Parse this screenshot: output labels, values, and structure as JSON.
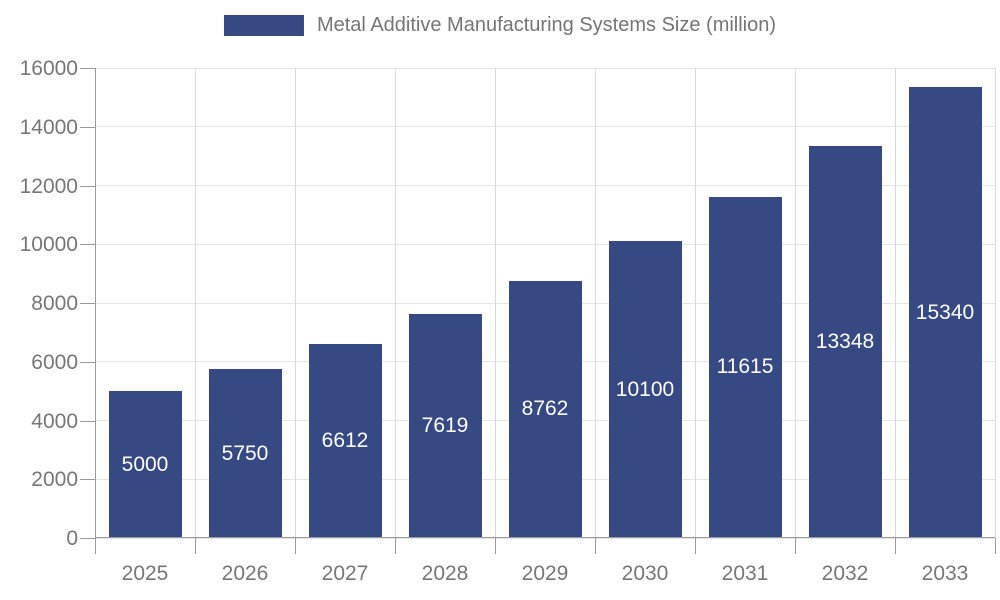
{
  "legend": {
    "label": "Metal Additive Manufacturing Systems Size (million)"
  },
  "chart_data": {
    "type": "bar",
    "title": "Metal Additive Manufacturing Systems Size (million)",
    "categories": [
      "2025",
      "2026",
      "2027",
      "2028",
      "2029",
      "2030",
      "2031",
      "2032",
      "2033"
    ],
    "values": [
      5000,
      5750,
      6612,
      7619,
      8762,
      10100,
      11615,
      13348,
      15340
    ],
    "value_labels": [
      "5000",
      "5750",
      "6612",
      "7619",
      "8762",
      "10100",
      "11615",
      "13348",
      "15340"
    ],
    "xlabel": "",
    "ylabel": "",
    "ylim": [
      0,
      16000
    ],
    "y_ticks": [
      0,
      2000,
      4000,
      6000,
      8000,
      10000,
      12000,
      14000,
      16000
    ],
    "y_tick_labels": [
      "0",
      "2000",
      "4000",
      "6000",
      "8000",
      "10000",
      "12000",
      "14000",
      "16000"
    ],
    "grid": true,
    "legend_position": "top",
    "bar_labels_inside": true
  },
  "colors": {
    "bar": "#364982",
    "axis": "#999999",
    "grid_h": "#e4e4ea",
    "grid_v": "#d7d7df",
    "tick_label": "#767676",
    "legend_text": "#757575",
    "value_label": "#ffffff",
    "background": "#ffffff"
  }
}
